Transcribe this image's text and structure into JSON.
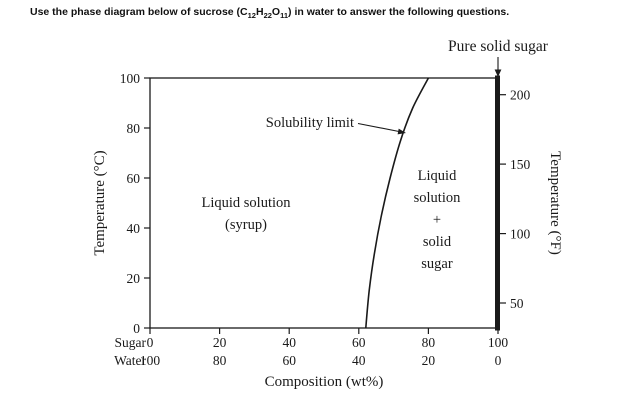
{
  "question": {
    "prefix": "Use the phase diagram below of sucrose (C",
    "sub_1": "12",
    "h": "H",
    "sub_2": "22",
    "o": "O",
    "sub_3": "11",
    "suffix": ") in water to answer the following questions."
  },
  "chart_data": {
    "type": "line",
    "title": "",
    "xlabel": "Composition (wt%)",
    "x_range_wt_sugar": [
      0,
      100
    ],
    "grid": false,
    "legend": "none",
    "x_axis_rows": [
      {
        "label": "Sugar",
        "ticks": [
          "0",
          "20",
          "40",
          "60",
          "80",
          "100"
        ]
      },
      {
        "label": "Water",
        "ticks": [
          "100",
          "80",
          "60",
          "40",
          "20",
          "0"
        ]
      }
    ],
    "y_axis_left": {
      "label": "Temperature (°C)",
      "ticks": [
        "0",
        "20",
        "40",
        "60",
        "80",
        "100"
      ],
      "range": [
        0,
        100
      ]
    },
    "y_axis_right": {
      "label": "Temperature (°F)",
      "ticks": [
        "50",
        "100",
        "150",
        "200"
      ],
      "range": [
        32,
        212
      ]
    },
    "series": [
      {
        "name": "Solubility limit",
        "points_wt_sugar": [
          62,
          63,
          64.5,
          66.5,
          69,
          72,
          75.5,
          80
        ],
        "points_temp_c": [
          0,
          15,
          30,
          45,
          60,
          75,
          88,
          100
        ]
      }
    ],
    "region_labels": {
      "syrup_line1": "Liquid solution",
      "syrup_line2": "(syrup)",
      "two_phase_line1": "Liquid",
      "two_phase_line2": "solution",
      "two_phase_line3": "+",
      "two_phase_line4": "solid",
      "two_phase_line5": "sugar",
      "curve_label": "Solubility limit",
      "pure_solid": "Pure solid sugar"
    }
  }
}
